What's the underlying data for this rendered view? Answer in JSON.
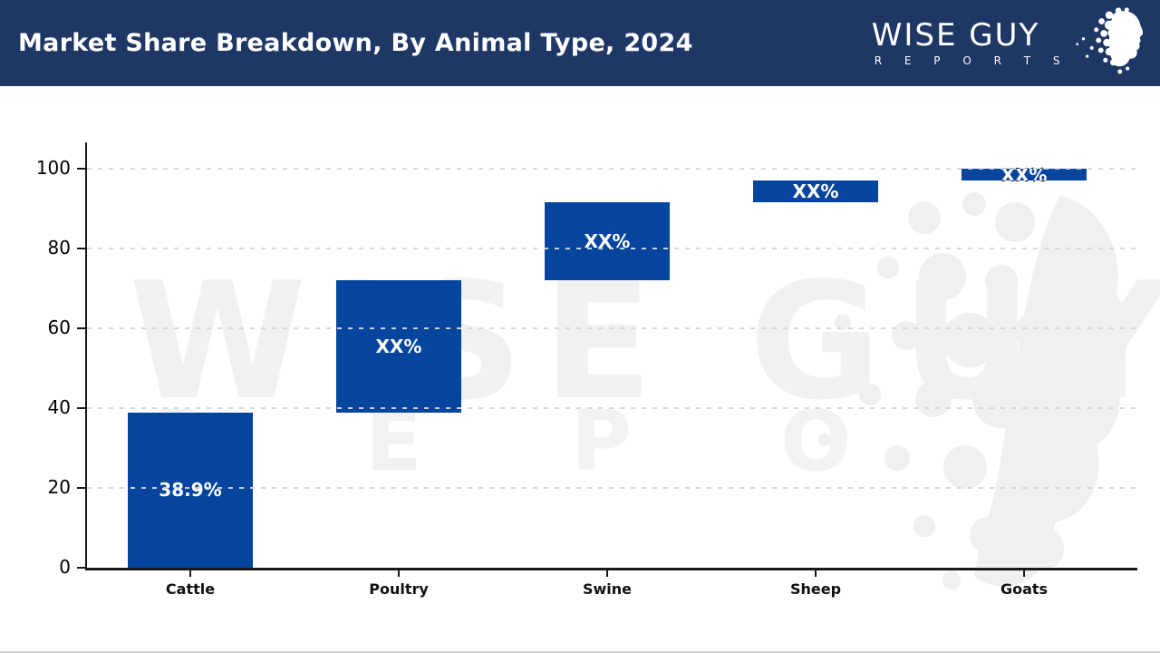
{
  "header": {
    "title": "Market Share Breakdown, By Animal Type, 2024",
    "background_color": "#1f3765",
    "logo": {
      "line1": "WISE GUY",
      "line2": "R E P O R T S",
      "head_icon": "dotted-face-profile"
    }
  },
  "watermark": {
    "line1": "WISE GUY",
    "line2": "R E P O R T S"
  },
  "chart_data": {
    "type": "bar",
    "subtype": "waterfall",
    "title": "Market Share Breakdown, By Animal Type, 2024",
    "xlabel": "",
    "ylabel": "",
    "categories": [
      "Cattle",
      "Poultry",
      "Swine",
      "Sheep",
      "Goats"
    ],
    "segments": [
      {
        "category": "Cattle",
        "start": 0,
        "end": 38.9,
        "label": "38.9%",
        "label_straddle": false
      },
      {
        "category": "Poultry",
        "start": 38.9,
        "end": 72.0,
        "label": "XX%",
        "label_straddle": false
      },
      {
        "category": "Swine",
        "start": 72.0,
        "end": 91.5,
        "label": "XX%",
        "label_straddle": false
      },
      {
        "category": "Sheep",
        "start": 91.5,
        "end": 97.0,
        "label": "XX%",
        "label_straddle": false
      },
      {
        "category": "Goats",
        "start": 97.0,
        "end": 100,
        "label": "XX%",
        "label_straddle": true
      }
    ],
    "yticks": [
      0,
      20,
      40,
      60,
      80,
      100
    ],
    "ylim": [
      0,
      106
    ],
    "grid": "horizontal-dashed",
    "legend": "none",
    "bar_color": "#05459d",
    "bar_label_color": "#ffffff",
    "outside_label_color": "#111111",
    "gridline_color": "#d6d6d6",
    "axis_color": "#1a1a1a"
  }
}
